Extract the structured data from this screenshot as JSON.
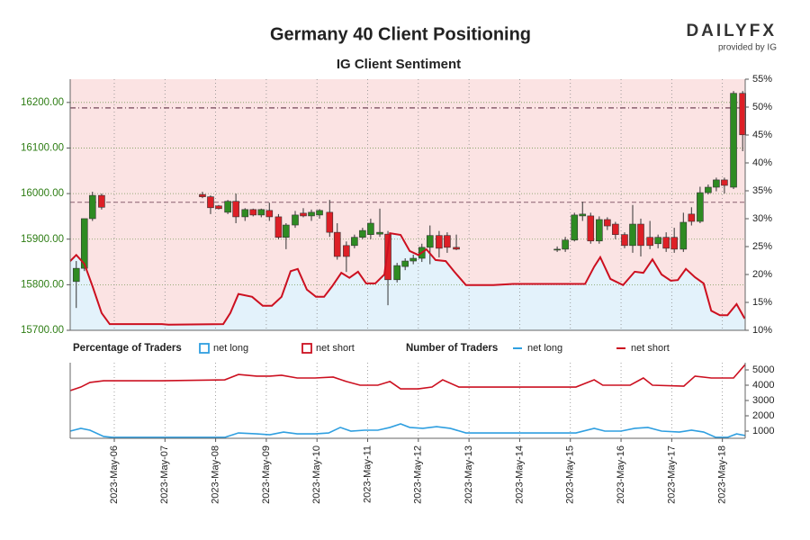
{
  "chart_data": [
    {
      "type": "candlestick",
      "title": "Germany 40 Client Positioning",
      "subtitle": "IG Client Sentiment",
      "brand": "DAILYFX",
      "brand_note": "provided by IG",
      "xlim": [
        5.13,
        18.45
      ],
      "xticks": [
        {
          "value": 6,
          "label": "2023-May-06"
        },
        {
          "value": 7,
          "label": "2023-May-07"
        },
        {
          "value": 8,
          "label": "2023-May-08"
        },
        {
          "value": 9,
          "label": "2023-May-09"
        },
        {
          "value": 10,
          "label": "2023-May-10"
        },
        {
          "value": 11,
          "label": "2023-May-11"
        },
        {
          "value": 12,
          "label": "2023-May-12"
        },
        {
          "value": 13,
          "label": "2023-May-13"
        },
        {
          "value": 14,
          "label": "2023-May-14"
        },
        {
          "value": 15,
          "label": "2023-May-15"
        },
        {
          "value": 16,
          "label": "2023-May-16"
        },
        {
          "value": 17,
          "label": "2023-May-17"
        },
        {
          "value": 18,
          "label": "2023-May-18"
        }
      ],
      "ylim": [
        15700,
        16251
      ],
      "yticks": [
        {
          "value": 15700,
          "label": "15700.00"
        },
        {
          "value": 15800,
          "label": "15800.00"
        },
        {
          "value": 15900,
          "label": "15900.00"
        },
        {
          "value": 16000,
          "label": "16000.00"
        },
        {
          "value": 16100,
          "label": "16100.00"
        },
        {
          "value": 16200,
          "label": "16200.00"
        }
      ],
      "y2lim": [
        10,
        55
      ],
      "y2ticks": [
        {
          "value": 10,
          "label": "10%"
        },
        {
          "value": 15,
          "label": "15%"
        },
        {
          "value": 20,
          "label": "20%"
        },
        {
          "value": 25,
          "label": "25%"
        },
        {
          "value": 30,
          "label": "30%"
        },
        {
          "value": 35,
          "label": "35%"
        },
        {
          "value": 40,
          "label": "40%"
        },
        {
          "value": 45,
          "label": "45%"
        },
        {
          "value": 50,
          "label": "50%"
        },
        {
          "value": 55,
          "label": "55%"
        }
      ],
      "hlines": [
        16188,
        15981
      ],
      "up_color": "#2e8b22",
      "down_color": "#dd1f26",
      "candles": {
        "x": [
          5.25,
          5.41,
          5.57,
          5.75,
          7.74,
          7.9,
          8.06,
          8.24,
          8.4,
          8.58,
          8.74,
          8.9,
          9.06,
          9.24,
          9.39,
          9.57,
          9.73,
          9.89,
          10.05,
          10.25,
          10.4,
          10.58,
          10.74,
          10.9,
          11.06,
          11.24,
          11.4,
          11.58,
          11.74,
          11.9,
          12.07,
          12.23,
          12.41,
          12.57,
          12.75,
          14.74,
          14.9,
          15.08,
          15.24,
          15.4,
          15.57,
          15.73,
          15.89,
          16.07,
          16.23,
          16.39,
          16.57,
          16.73,
          16.89,
          17.05,
          17.23,
          17.39,
          17.56,
          17.72,
          17.88,
          18.04,
          18.22,
          18.4
        ],
        "open": [
          15807,
          15836,
          15945,
          15996,
          15998,
          15993,
          15973,
          15959,
          15983,
          15949,
          15965,
          15953,
          15963,
          15949,
          15904,
          15931,
          15957,
          15951,
          15953,
          15959,
          15915,
          15886,
          15886,
          15904,
          15910,
          15911,
          15911,
          15811,
          15840,
          15852,
          15858,
          15882,
          15908,
          15908,
          15882,
          15876,
          15878,
          15898,
          15951,
          15951,
          15896,
          15943,
          15933,
          15910,
          15886,
          15933,
          15904,
          15890,
          15904,
          15904,
          15878,
          15955,
          15939,
          16002,
          16014,
          16030,
          16014,
          16220
        ],
        "high": [
          15852,
          15945,
          16004,
          16000,
          16004,
          15996,
          15975,
          15986,
          16000,
          15968,
          15967,
          15967,
          15980,
          15955,
          15935,
          15962,
          15968,
          15965,
          15966,
          15986,
          15935,
          15895,
          15910,
          15925,
          15945,
          15967,
          15918,
          15848,
          15858,
          15866,
          15890,
          15930,
          15918,
          15915,
          15910,
          15884,
          15905,
          15958,
          15982,
          15958,
          15950,
          15948,
          15938,
          15915,
          15975,
          15945,
          15940,
          15910,
          15915,
          15925,
          15958,
          15970,
          16015,
          16020,
          16035,
          16035,
          16225,
          16225
        ],
        "low": [
          15749,
          15830,
          15940,
          15965,
          15990,
          15955,
          15965,
          15955,
          15935,
          15940,
          15950,
          15948,
          15940,
          15900,
          15878,
          15925,
          15948,
          15940,
          15945,
          15905,
          15855,
          15828,
          15880,
          15900,
          15900,
          15905,
          15755,
          15805,
          15832,
          15845,
          15850,
          15845,
          15860,
          15870,
          15876,
          15872,
          15872,
          15895,
          15940,
          15890,
          15890,
          15920,
          15900,
          15880,
          15870,
          15862,
          15878,
          15880,
          15872,
          15870,
          15872,
          15930,
          15935,
          15998,
          16005,
          16000,
          16010,
          16093
        ],
        "close": [
          15836,
          15945,
          15996,
          15970,
          15993,
          15969,
          15967,
          15983,
          15949,
          15965,
          15953,
          15965,
          15949,
          15904,
          15931,
          15953,
          15951,
          15959,
          15963,
          15915,
          15862,
          15862,
          15904,
          15919,
          15935,
          15915,
          15811,
          15842,
          15852,
          15858,
          15882,
          15908,
          15880,
          15882,
          15878,
          15878,
          15898,
          15953,
          15955,
          15896,
          15943,
          15929,
          15910,
          15886,
          15933,
          15886,
          15886,
          15904,
          15880,
          15878,
          15937,
          15939,
          16002,
          16014,
          16030,
          16018,
          16220,
          16129
        ]
      },
      "legend": {
        "title": "Percentage of Traders",
        "items": [
          {
            "name": "net long",
            "color": "#2f9fe0"
          },
          {
            "name": "net short",
            "color": "#cc1020"
          }
        ]
      },
      "long_fill": "#e3f2fb",
      "short_fill": "#fbe3e3",
      "line_color": "#cc1020",
      "series": [
        {
          "name": "net long",
          "axis": "y2",
          "x": [
            5.13,
            5.25,
            5.41,
            5.57,
            5.75,
            5.91,
            6.94,
            7.07,
            8.15,
            8.29,
            8.45,
            8.72,
            8.93,
            9.11,
            9.3,
            9.48,
            9.62,
            9.8,
            9.98,
            10.14,
            10.3,
            10.48,
            10.64,
            10.81,
            10.97,
            11.15,
            11.33,
            11.44,
            11.65,
            11.83,
            12.0,
            12.16,
            12.34,
            12.54,
            12.71,
            12.94,
            13.48,
            13.87,
            15.29,
            15.47,
            15.59,
            15.79,
            16.04,
            16.27,
            16.44,
            16.62,
            16.8,
            16.98,
            17.12,
            17.28,
            17.46,
            17.63,
            17.78,
            17.95,
            18.1,
            18.28,
            18.44
          ],
          "values": [
            22.4,
            23.5,
            21.9,
            17.9,
            13.1,
            11.1,
            11.1,
            11.0,
            11.1,
            13.1,
            16.5,
            16.0,
            14.4,
            14.4,
            16.0,
            20.6,
            21.0,
            17.3,
            16.0,
            16.0,
            17.9,
            20.3,
            19.4,
            20.5,
            18.4,
            18.4,
            20.0,
            27.4,
            27.1,
            24.2,
            23.5,
            24.5,
            22.6,
            22.4,
            20.5,
            18.1,
            18.1,
            18.3,
            18.3,
            21.4,
            23.1,
            19.2,
            18.1,
            20.5,
            20.3,
            22.7,
            20.0,
            18.9,
            19.0,
            21.0,
            19.5,
            18.4,
            13.5,
            12.7,
            12.7,
            14.7,
            12.1
          ]
        }
      ]
    },
    {
      "type": "line",
      "xlim": [
        5.13,
        18.45
      ],
      "ylim": [
        530,
        5470
      ],
      "yticks": [
        1000,
        2000,
        3000,
        4000,
        5000
      ],
      "legend": {
        "title": "Number of Traders"
      },
      "series": [
        {
          "name": "net long",
          "color": "#2f9fe0",
          "x": [
            5.13,
            5.34,
            5.52,
            5.79,
            5.96,
            8.18,
            8.45,
            8.81,
            9.07,
            9.34,
            9.61,
            9.96,
            10.23,
            10.46,
            10.67,
            10.94,
            11.2,
            11.44,
            11.65,
            11.83,
            12.09,
            12.36,
            12.63,
            12.94,
            13.69,
            15.11,
            15.47,
            15.68,
            16.0,
            16.27,
            16.53,
            16.8,
            17.15,
            17.39,
            17.63,
            17.87,
            18.1,
            18.28,
            18.45
          ],
          "values": [
            1000,
            1180,
            1060,
            650,
            590,
            590,
            880,
            820,
            760,
            940,
            820,
            820,
            880,
            1240,
            1000,
            1060,
            1060,
            1240,
            1470,
            1240,
            1180,
            1290,
            1180,
            880,
            880,
            880,
            1180,
            1000,
            1000,
            1180,
            1240,
            1000,
            940,
            1060,
            940,
            590,
            590,
            820,
            710
          ]
        },
        {
          "name": "net short",
          "color": "#cc1020",
          "x": [
            5.13,
            5.34,
            5.52,
            5.79,
            6.94,
            8.18,
            8.45,
            8.81,
            9.07,
            9.3,
            9.61,
            9.96,
            10.32,
            10.58,
            10.85,
            11.2,
            11.44,
            11.65,
            12.0,
            12.27,
            12.48,
            12.8,
            13.69,
            15.11,
            15.47,
            15.64,
            16.18,
            16.44,
            16.62,
            17.24,
            17.46,
            17.78,
            18.22,
            18.45
          ],
          "values": [
            3650,
            3880,
            4180,
            4290,
            4290,
            4350,
            4700,
            4590,
            4590,
            4650,
            4470,
            4470,
            4530,
            4240,
            4000,
            4000,
            4240,
            3760,
            3760,
            3880,
            4350,
            3880,
            3880,
            3880,
            4350,
            4000,
            4000,
            4470,
            4000,
            3940,
            4590,
            4470,
            4470,
            5350
          ]
        }
      ]
    }
  ]
}
